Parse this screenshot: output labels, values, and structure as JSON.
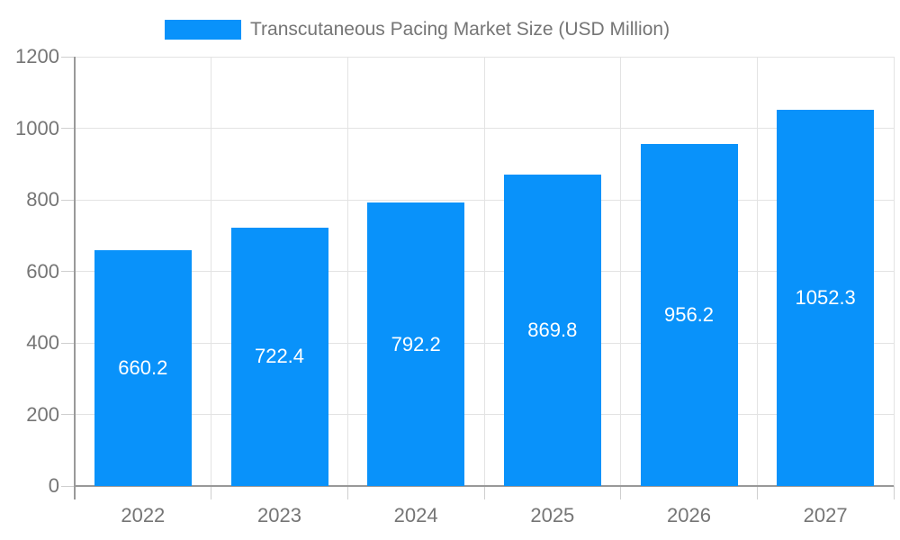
{
  "legend": {
    "label": "Transcutaneous Pacing Market Size (USD Million)"
  },
  "chart_data": {
    "type": "bar",
    "categories": [
      "2022",
      "2023",
      "2024",
      "2025",
      "2026",
      "2027"
    ],
    "values": [
      660.2,
      722.4,
      792.2,
      869.8,
      956.2,
      1052.3
    ],
    "series_name": "Transcutaneous Pacing Market Size (USD Million)",
    "title": "",
    "xlabel": "",
    "ylabel": "",
    "ylim": [
      0,
      1200
    ],
    "yticks": [
      0,
      200,
      400,
      600,
      800,
      1000,
      1200
    ],
    "grid": true,
    "legend_position": "top-center",
    "data_labels": "centered-white-inside-bars"
  },
  "colors": {
    "bar": "#0992fa",
    "axis": "#999999",
    "grid": "#e3e3e3",
    "tick": "#cfcfcf",
    "text": "#757575",
    "bar_label": "#ffffff",
    "background": "#ffffff"
  }
}
